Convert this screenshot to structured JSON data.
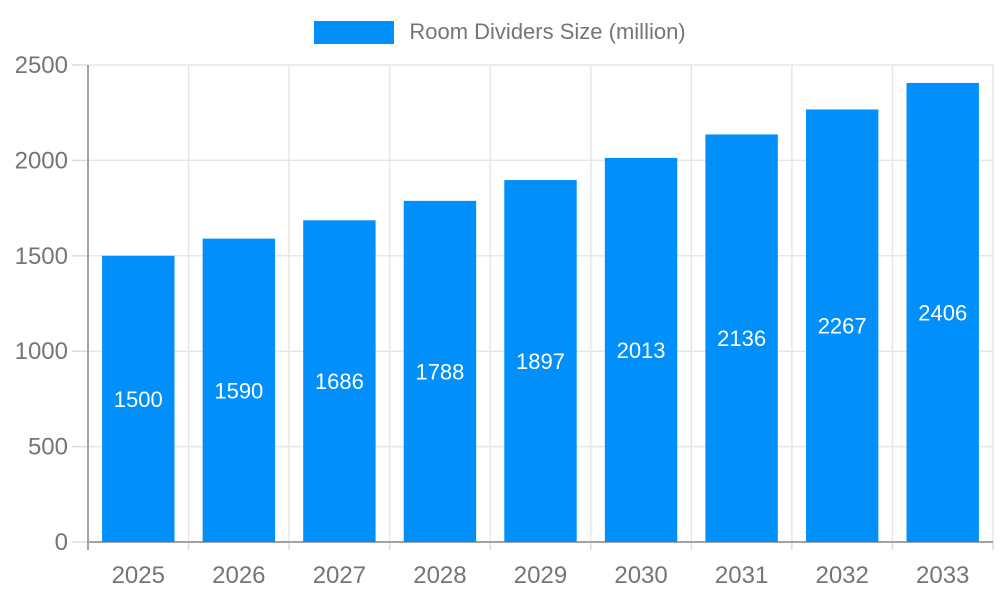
{
  "legend": {
    "label": "Room Dividers Size (million)"
  },
  "chart_data": {
    "type": "bar",
    "title": "Room Dividers Size (million)",
    "series_name": "Room Dividers Size (million)",
    "categories": [
      "2025",
      "2026",
      "2027",
      "2028",
      "2029",
      "2030",
      "2031",
      "2032",
      "2033"
    ],
    "values": [
      1500,
      1590,
      1686,
      1788,
      1897,
      2013,
      2136,
      2267,
      2406
    ],
    "value_labels": [
      "1500",
      "1590",
      "1686",
      "1788",
      "1897",
      "2013",
      "2136",
      "2267",
      "2406"
    ],
    "yticks": [
      0,
      500,
      1000,
      1500,
      2000,
      2500
    ],
    "ytick_labels": [
      "0",
      "500",
      "1000",
      "1500",
      "2000",
      "2500"
    ],
    "ylim": [
      0,
      2500
    ],
    "xlabel": "",
    "ylabel": "",
    "grid": "on",
    "legend_position": "top",
    "bar_color": "#008FFB",
    "axis_label_color": "#757575",
    "value_label_color": "#ffffff",
    "grid_color": "#e7e7e7",
    "tick_color": "#dcdcdc",
    "axis_line_color": "#a3a3a3"
  }
}
